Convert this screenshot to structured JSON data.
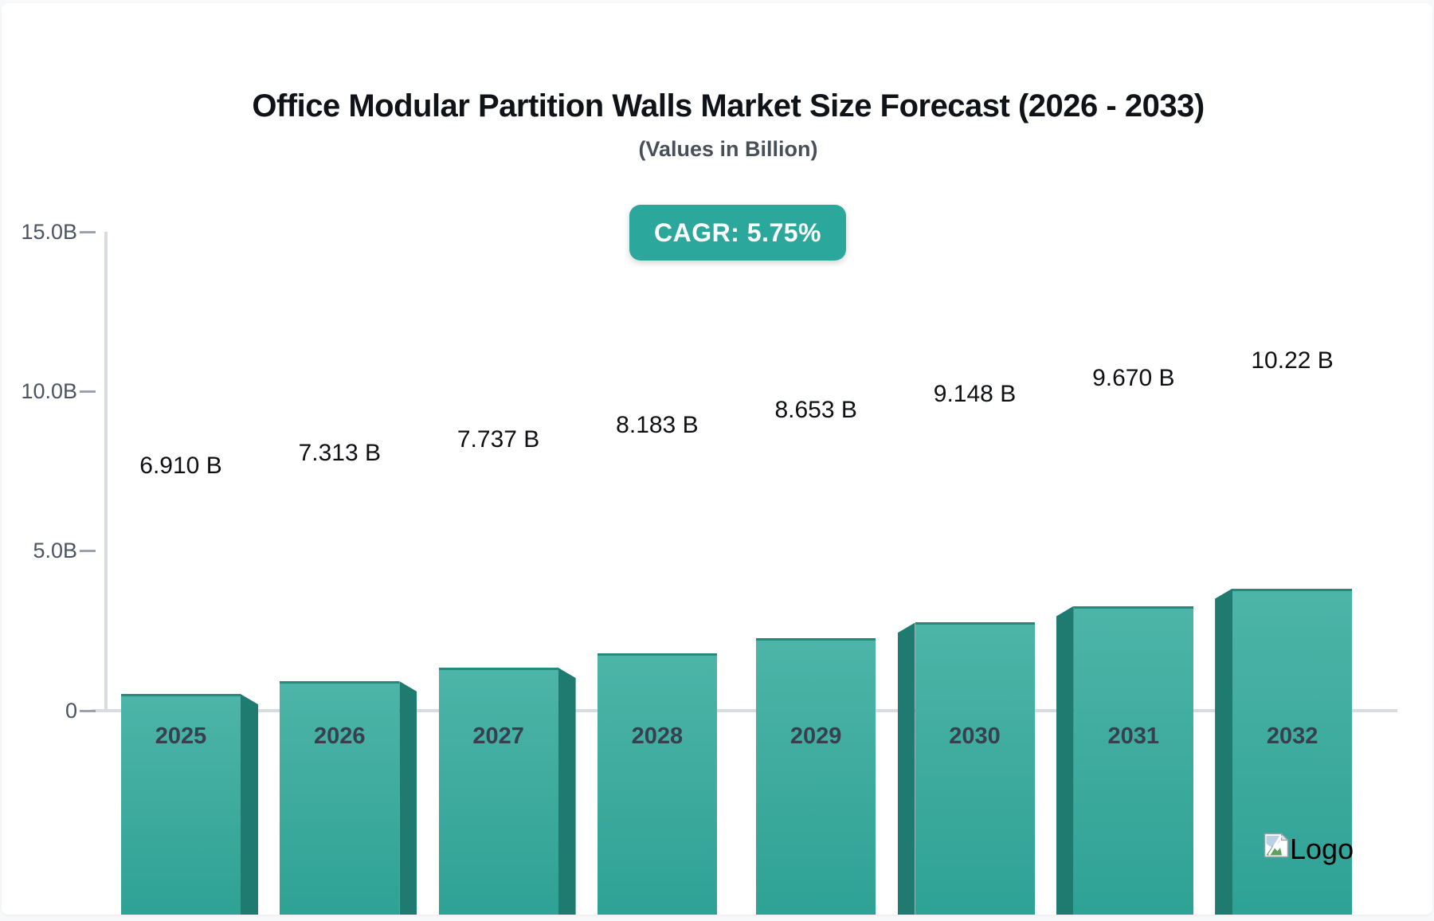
{
  "page": {
    "title": "Office Modular Partition Walls Market Size Forecast (2026 - 2033)",
    "subtitle": "(Values in Billion)",
    "cagr_badge_label": "CAGR: 5.75%",
    "logo_alt_text": "Logo",
    "colors": {
      "accent_teal": "#2BA89B",
      "bar_face_top": "#4DB4A8",
      "bar_face_bottom": "#2EA295",
      "bar_side": "#1F7B70",
      "bar_top_edge": "#25897C",
      "axis_line": "#D8DBDF",
      "tick_dash": "#9AA3AD",
      "y_label": "#4A5462",
      "x_label": "#36404E",
      "value_label": "#0E1013",
      "page_bg": "#F7F8F9",
      "card_bg": "#FFFFFF"
    }
  },
  "chart_data": {
    "type": "bar",
    "title": "Office Modular Partition Walls Market Size Forecast (2026 - 2033)",
    "subtitle": "(Values in Billion)",
    "annotation": "CAGR: 5.75%",
    "categories": [
      "2025",
      "2026",
      "2027",
      "2028",
      "2029",
      "2030",
      "2031",
      "2032"
    ],
    "values": [
      6.91,
      7.313,
      7.737,
      8.183,
      8.653,
      9.148,
      9.67,
      10.22
    ],
    "value_labels": [
      "6.910 B",
      "7.313 B",
      "7.737 B",
      "8.183 B",
      "8.653 B",
      "9.148 B",
      "9.670 B",
      "10.22 B"
    ],
    "xlabel": "",
    "ylabel": "",
    "ylim": [
      0,
      15
    ],
    "y_ticks": [
      {
        "label": "15.0B",
        "value": 15
      },
      {
        "label": "10.0B",
        "value": 10
      },
      {
        "label": "5.0B",
        "value": 5
      },
      {
        "label": "0",
        "value": 0
      }
    ],
    "grid": false,
    "legend": false
  }
}
